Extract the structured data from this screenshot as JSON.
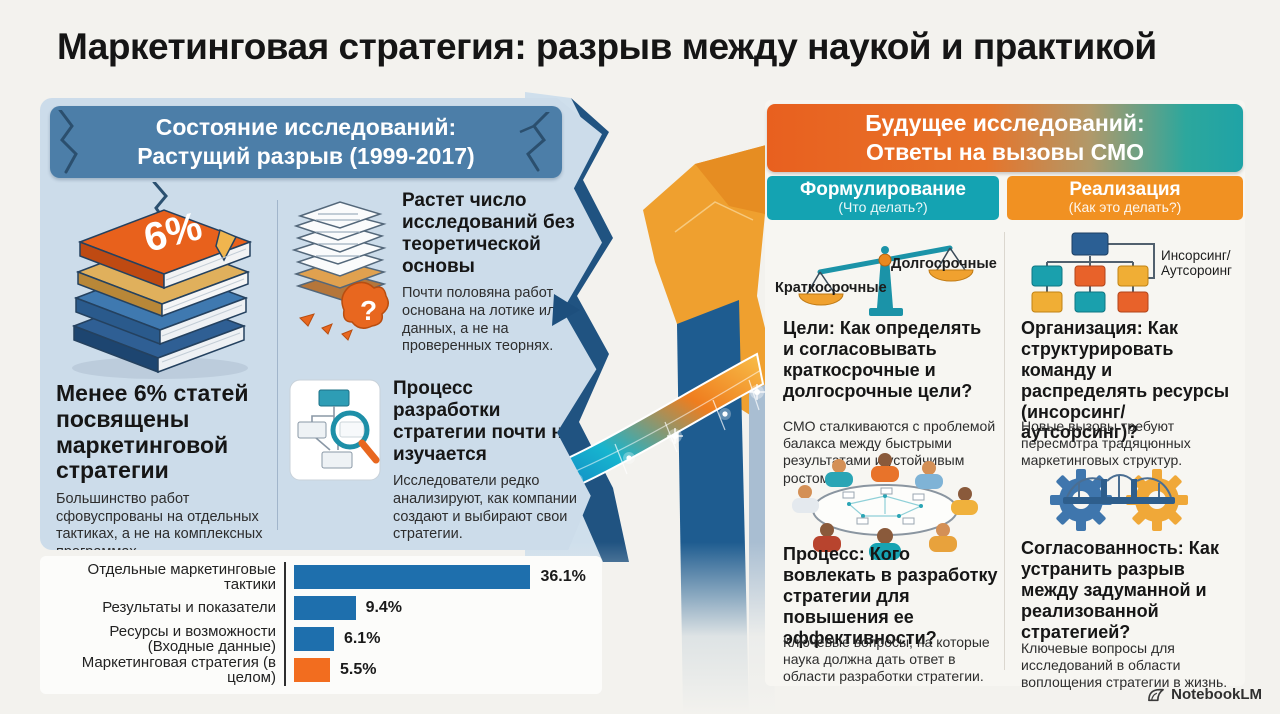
{
  "title": "Маркетинговая стратегия: разрыв между наукой и практикой",
  "left_panel": {
    "header_line1": "Состояние исследований:",
    "header_line2": "Растущий разрыв (1999-2017)",
    "book_badge": "6%",
    "stat": {
      "heading": "Менее 6% статей посвящены маркетинговой стратегии",
      "body": "Большинство работ сфовуспрованы на отдельных тактиках, а не на комплексных программах."
    },
    "items": [
      {
        "heading": "Растет число исследований без теоретической основы",
        "body": "Почти половяна работ основана на лотике или данных, а не на проверенных теорнях."
      },
      {
        "heading": "Процесс разработки стратегии почти не изучается",
        "body": "Исследователи редко анализируют, как компании создают и выбирают свои стратегии."
      }
    ]
  },
  "chart_data": {
    "type": "bar",
    "orientation": "horizontal",
    "categories": [
      "Отдельные маркетинговые тактики",
      "Результаты и показатели",
      "Ресурсы и возможности (Входные данные)",
      "Маркетинговая стратегия (в целом)"
    ],
    "values": [
      36.1,
      9.4,
      6.1,
      5.5
    ],
    "value_labels": [
      "36.1%",
      "9.4%",
      "6.1%",
      "5.5%"
    ],
    "bar_colors": [
      "#1e6fad",
      "#1e6fad",
      "#1e6fad",
      "#f26d1f"
    ],
    "xlim": [
      0,
      40
    ],
    "grid": false,
    "legend": "none"
  },
  "right_panel": {
    "header_line1": "Будущее исследований:",
    "header_line2": "Ответы на вызовы СМО",
    "columns": [
      {
        "title": "Формулирование",
        "subtitle": "(Что делать?)",
        "color": "#14a3b2"
      },
      {
        "title": "Реализация",
        "subtitle": "(Как это делать?)",
        "color": "#f19122"
      }
    ],
    "scale_labels": {
      "left": "Краткосрочные",
      "right": "Долгосрочные"
    },
    "org_label_line1": "Инсорсинг/",
    "org_label_line2": "Аутсороинг",
    "cards": [
      {
        "heading": "Цели: Как определять и согласовывать краткосрочные и долгосрочные цели?",
        "body": "СМО сталкиваются с проблемой балакса между быстрыми результатами и устойчивым ростом."
      },
      {
        "heading": "Организация: Как структурировать команду и распределять ресурсы (инсорсинг/аутсорсинг)?",
        "body": "Новые вызовы требуют пересмотра традяцюнных маркетинговых структур."
      },
      {
        "heading": "Процесс: Кого вовлекать в разработку стратегии для повышения ее эффективности?",
        "body": "Ключевые вопросы, на которые наука должна дать ответ в области разработки стратегии."
      },
      {
        "heading": "Согласованность: Как устранить разрыв между задуманной и реализованной стратегией?",
        "body": "Ключевые вопросы для исследований в области воплощения стратегии в жизнь."
      }
    ]
  },
  "footer": {
    "brand": "NotebookLM"
  },
  "colors": {
    "page_bg": "#f3f2ee",
    "left_panel_bg": "#ccdcea",
    "left_header_bg": "#4c7ea8",
    "bar_blue": "#1e6fad",
    "bar_orange": "#f26d1f",
    "teal": "#14a3b2",
    "orange": "#f19122",
    "header_gradient_left": "#e8601f",
    "header_gradient_right": "#1fa3a6"
  }
}
